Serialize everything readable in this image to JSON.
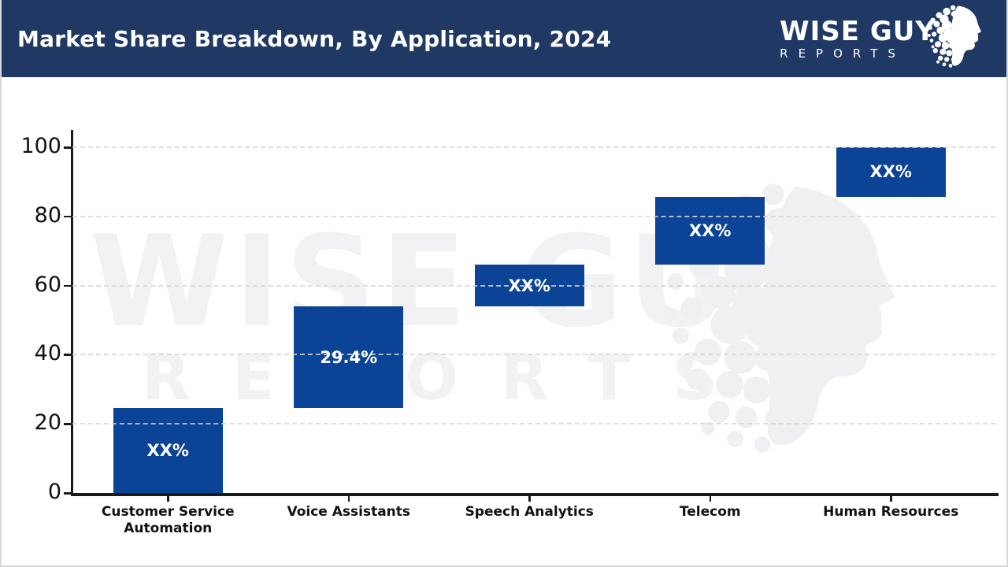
{
  "header": {
    "title": "Market Share Breakdown, By Application, 2024",
    "logo": {
      "line1": "WISE GUY",
      "line2": "REPORTS"
    }
  },
  "watermark": {
    "line1": "WISE GUY",
    "line2": "REPORTS"
  },
  "chart_data": {
    "type": "bar",
    "subtype": "waterfall",
    "title": "Market Share Breakdown, By Application, 2024",
    "xlabel": "",
    "ylabel": "",
    "ylim": [
      0,
      105
    ],
    "y_ticks": [
      0,
      20,
      40,
      60,
      80,
      100
    ],
    "grid": "dashed-horizontal",
    "legend": "none",
    "categories": [
      "Customer Service Automation",
      "Voice Assistants",
      "Speech Analytics",
      "Telecom",
      "Human Resources"
    ],
    "segments": [
      {
        "category": "Customer Service Automation",
        "start": 0,
        "end": 24.5,
        "value": 24.5,
        "value_label": "XX%"
      },
      {
        "category": "Voice Assistants",
        "start": 24.5,
        "end": 53.9,
        "value": 29.4,
        "value_label": "29.4%"
      },
      {
        "category": "Speech Analytics",
        "start": 53.9,
        "end": 66.1,
        "value": 12.2,
        "value_label": "XX%"
      },
      {
        "category": "Telecom",
        "start": 66.1,
        "end": 85.7,
        "value": 19.6,
        "value_label": "XX%"
      },
      {
        "category": "Human Resources",
        "start": 85.7,
        "end": 100,
        "value": 14.3,
        "value_label": "XX%"
      }
    ],
    "colors": {
      "bar": "#0b4397",
      "header_bg": "#1f3864",
      "grid": "#d6d6d6",
      "axis": "#1a1a1a",
      "watermark": "#f2f2f4"
    }
  }
}
